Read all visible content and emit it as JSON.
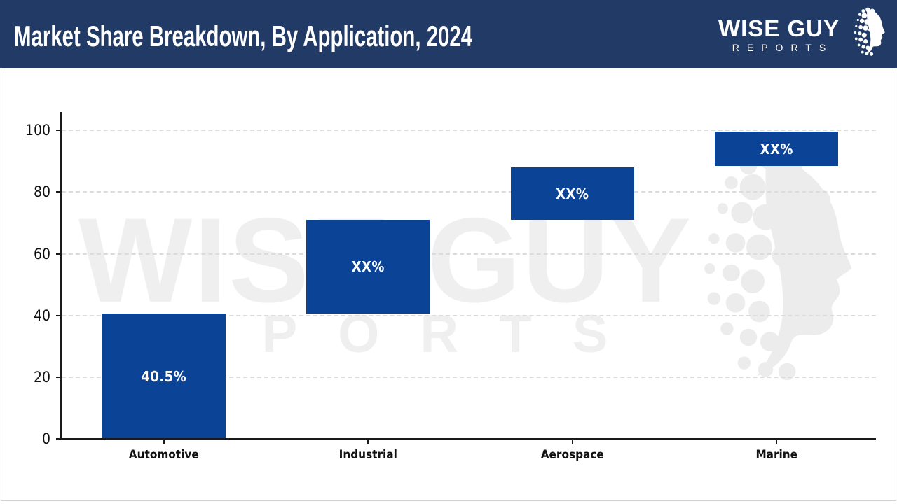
{
  "header": {
    "title": "Market Share Breakdown, By Application, 2024",
    "logo": {
      "brand": "WISE GUY",
      "sub": "REPORTS"
    }
  },
  "watermark": {
    "line1": "WISE GUY",
    "line2": "REPORTS"
  },
  "colors": {
    "header_bg": "#213a66",
    "bar": "#0b4397",
    "axis": "#1a1a1a",
    "grid": "#dcdcdc",
    "value_label": "#ffffff",
    "watermark": "#efefef",
    "canvas": "#ffffff"
  },
  "chart_data": {
    "type": "bar",
    "variant": "floating-waterfall",
    "title": "Market Share Breakdown, By Application, 2024",
    "xlabel": "",
    "ylabel": "",
    "categories": [
      "Automotive",
      "Industrial",
      "Aerospace",
      "Marine"
    ],
    "segments": [
      {
        "category": "Automotive",
        "start": 0,
        "end": 40.5,
        "label": "40.5%"
      },
      {
        "category": "Industrial",
        "start": 40.5,
        "end": 71,
        "label": "XX%"
      },
      {
        "category": "Aerospace",
        "start": 71,
        "end": 88,
        "label": "XX%"
      },
      {
        "category": "Marine",
        "start": 88.5,
        "end": 99.5,
        "label": "XX%"
      }
    ],
    "yticks": [
      0,
      20,
      40,
      60,
      80,
      100
    ],
    "ylim": [
      0,
      105.5
    ],
    "grid": {
      "horizontal": true,
      "style": "dashed"
    },
    "legend": "none",
    "bar_color": "#0b4397",
    "value_labels_inside_bars": true
  }
}
